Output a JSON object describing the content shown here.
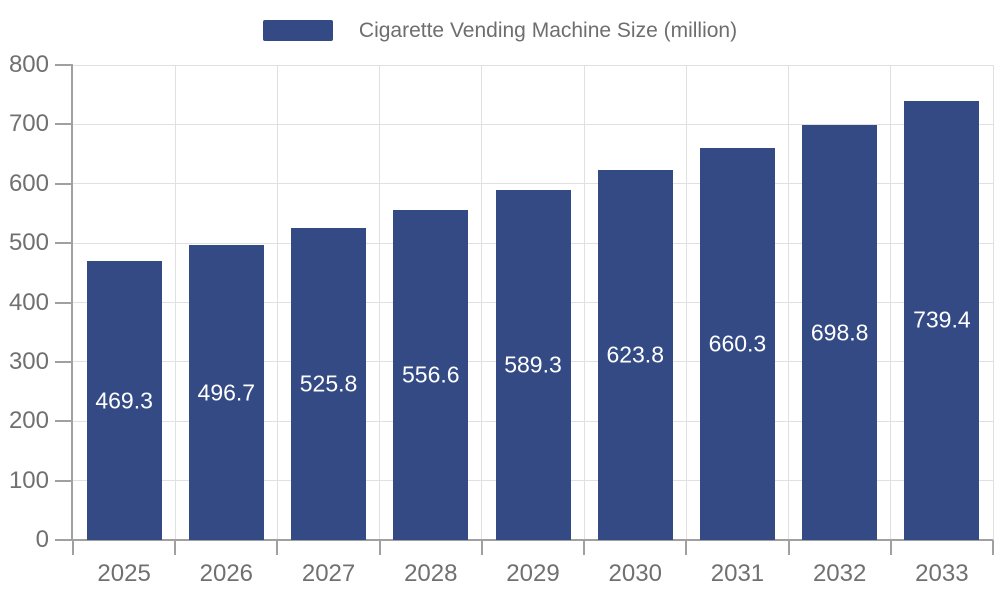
{
  "legend": {
    "label": "Cigarette Vending Machine Size (million)"
  },
  "chart_data": {
    "type": "bar",
    "title": "Cigarette Vending Machine Size (million)",
    "series_name": "Cigarette Vending Machine Size (million)",
    "categories": [
      "2025",
      "2026",
      "2027",
      "2028",
      "2029",
      "2030",
      "2031",
      "2032",
      "2033"
    ],
    "values": [
      469.3,
      496.7,
      525.8,
      556.6,
      589.3,
      623.8,
      660.3,
      698.8,
      739.4
    ],
    "value_labels": [
      "469.3",
      "496.7",
      "525.8",
      "556.6",
      "589.3",
      "623.8",
      "660.3",
      "698.8",
      "739.4"
    ],
    "xlabel": "",
    "ylabel": "",
    "ylim": [
      0,
      800
    ],
    "yticks": [
      0,
      100,
      200,
      300,
      400,
      500,
      600,
      700,
      800
    ],
    "grid": true,
    "legend_position": "top-center",
    "value_label_position": "center-of-bar"
  },
  "colors": {
    "bar": "#344a85",
    "grid": "#e0e0e0",
    "axis": "#a0a0a0",
    "tick_text": "#707070",
    "legend_text": "#6e6e6e",
    "value_text": "#ffffff",
    "background": "#ffffff"
  }
}
